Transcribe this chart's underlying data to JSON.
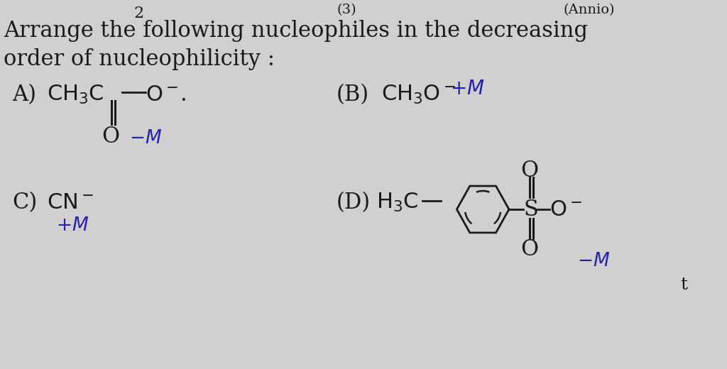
{
  "background_color": "#d0d0d0",
  "fig_width": 10.24,
  "fig_height": 5.2,
  "dpi": 100,
  "text_color": "#1a1a1a",
  "blue_color": "#2222aa",
  "title_line1": "Arrange the following nucleophiles in the decreasing",
  "title_line2": "order of nucleophilicity :",
  "header_2": "2",
  "header_3": "3",
  "header_annio": "(Annio)"
}
